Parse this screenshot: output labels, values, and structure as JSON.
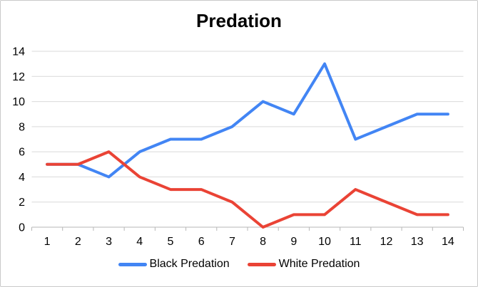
{
  "chart_data": {
    "type": "line",
    "title": "Predation",
    "xlabel": "",
    "ylabel": "",
    "x_categories": [
      "1",
      "2",
      "3",
      "4",
      "5",
      "6",
      "7",
      "8",
      "9",
      "10",
      "11",
      "12",
      "13",
      "14"
    ],
    "y_ticks": [
      0,
      2,
      4,
      6,
      8,
      10,
      12,
      14
    ],
    "ylim": [
      0,
      14
    ],
    "grid": "horizontal",
    "legend_position": "bottom",
    "series": [
      {
        "name": "Black Predation",
        "color": "#4285F4",
        "values": [
          5,
          5,
          4,
          6,
          7,
          7,
          8,
          10,
          9,
          13,
          7,
          8,
          9,
          9
        ]
      },
      {
        "name": "White Predation",
        "color": "#EA4335",
        "values": [
          5,
          5,
          6,
          4,
          3,
          3,
          2,
          0,
          1,
          1,
          3,
          2,
          1,
          1
        ]
      }
    ],
    "colors": {
      "axis_line": "#b7b7b7",
      "gridline": "#d9d9d9",
      "text": "#000000",
      "background": "#ffffff",
      "border": "#c9c9c9"
    }
  }
}
